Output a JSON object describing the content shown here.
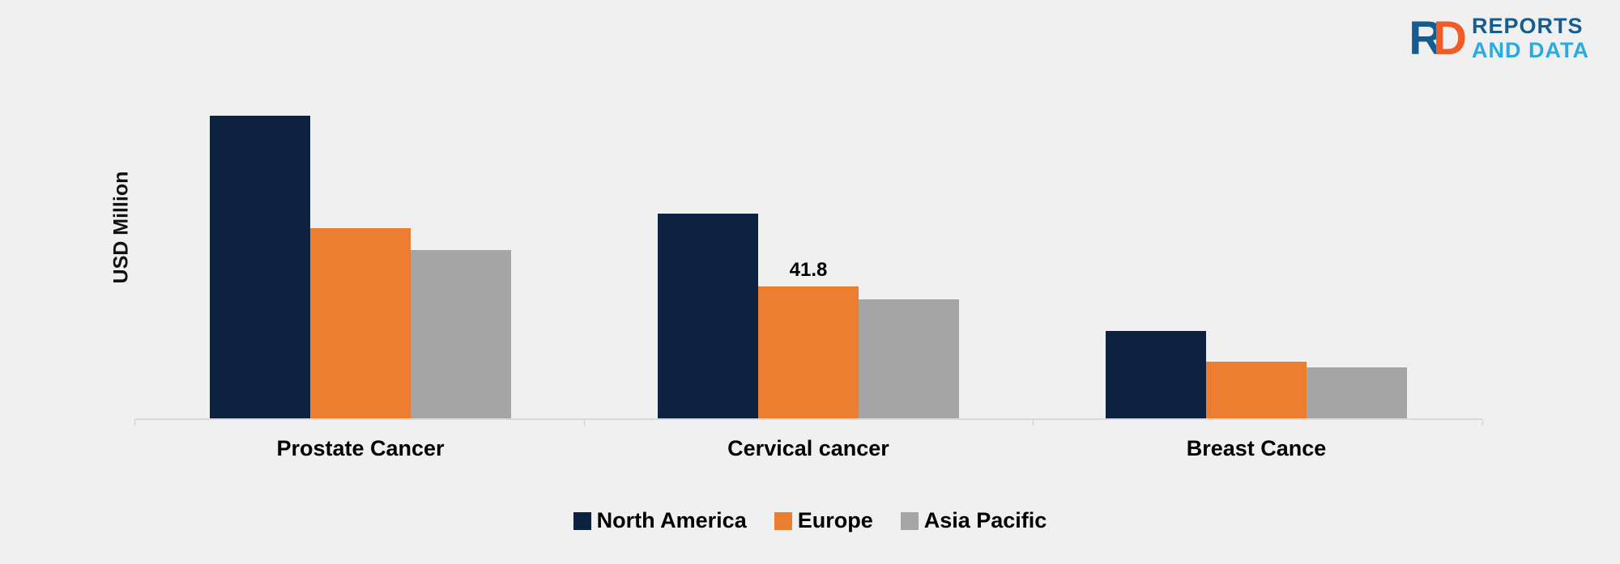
{
  "page": {
    "background": "#f0f0f0"
  },
  "logo": {
    "mark_r": "R",
    "mark_d": "D",
    "line1": "REPORTS",
    "line2": "AND DATA",
    "color_blue": "#155c91",
    "color_orange": "#f15b2a",
    "color_cyan": "#29abe2"
  },
  "chart_data": {
    "type": "bar",
    "title": "",
    "xlabel": "",
    "ylabel": "USD Million",
    "ylim": [
      0,
      110
    ],
    "grid": false,
    "legend_position": "bottom",
    "axis_color": "#d9d9d9",
    "categories": [
      "Prostate Cancer",
      "Cervical cancer",
      "Breast Cance"
    ],
    "series": [
      {
        "name": "North America",
        "color": "#0d2240",
        "values": [
          95.6,
          64.8,
          27.6
        ],
        "labels": [
          "",
          "",
          ""
        ]
      },
      {
        "name": "Europe",
        "color": "#ed7d31",
        "values": [
          60.1,
          41.8,
          17.9
        ],
        "labels": [
          "",
          "41.8",
          ""
        ]
      },
      {
        "name": "Asia Pacific",
        "color": "#a5a5a5",
        "values": [
          53.2,
          37.6,
          16.0
        ],
        "labels": [
          "",
          "",
          ""
        ]
      }
    ]
  }
}
